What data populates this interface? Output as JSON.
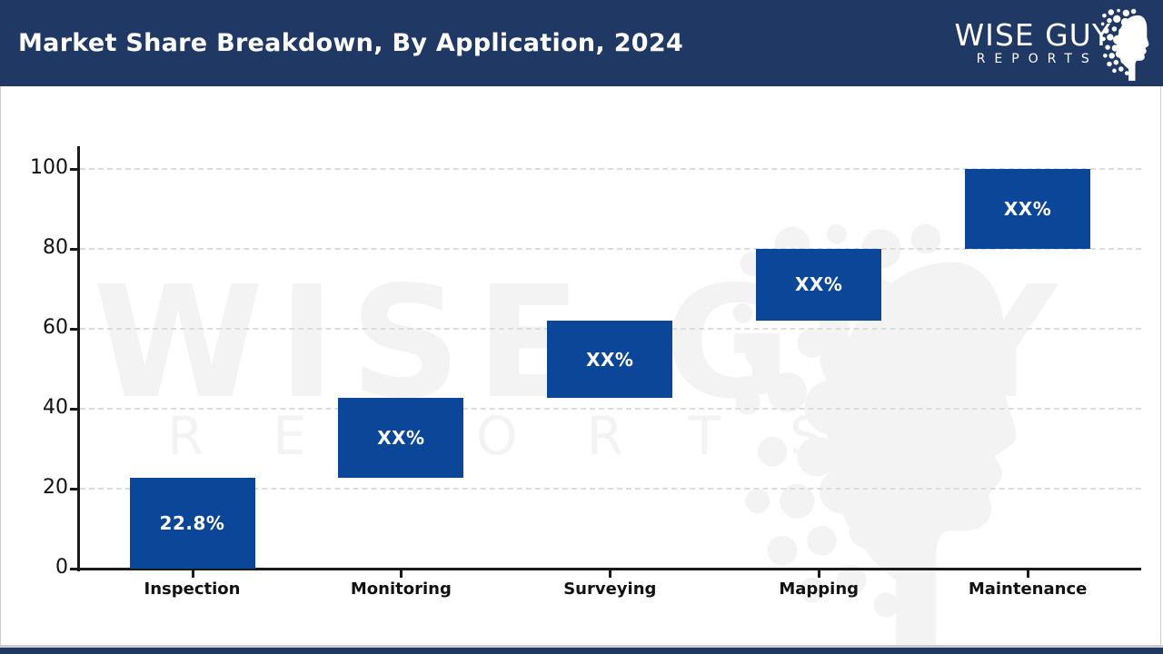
{
  "header": {
    "title": "Market Share Breakdown, By Application, 2024",
    "logo": {
      "line1": "WISE GUY",
      "line2": "REPORTS"
    }
  },
  "watermark": {
    "line1": "WISE GUY",
    "line2": "REPORTS"
  },
  "chart_data": {
    "type": "bar",
    "subtype": "floating-waterfall",
    "title": "Market Share Breakdown, By Application, 2024",
    "categories": [
      "Inspection",
      "Monitoring",
      "Surveying",
      "Mapping",
      "Maintenance"
    ],
    "segments": [
      {
        "category": "Inspection",
        "start": 0,
        "end": 22.8,
        "label": "22.8%"
      },
      {
        "category": "Monitoring",
        "start": 22.8,
        "end": 42.7,
        "label": "XX%"
      },
      {
        "category": "Surveying",
        "start": 42.7,
        "end": 61.9,
        "label": "XX%"
      },
      {
        "category": "Mapping",
        "start": 61.9,
        "end": 80.0,
        "label": "XX%"
      },
      {
        "category": "Maintenance",
        "start": 80.0,
        "end": 100.0,
        "label": "XX%"
      }
    ],
    "xlabel": "",
    "ylabel": "",
    "ylim": [
      0,
      105
    ],
    "yticks": [
      0,
      20,
      40,
      60,
      80,
      100
    ],
    "grid": "horizontal-dashed",
    "legend": "none"
  },
  "colors": {
    "header_bg": "#1f3864",
    "bar": "#0b4699",
    "bar_label": "#ffffff",
    "grid": "#dcdcdc",
    "axis": "#1a1a1a",
    "watermark": "#f3f3f3"
  }
}
